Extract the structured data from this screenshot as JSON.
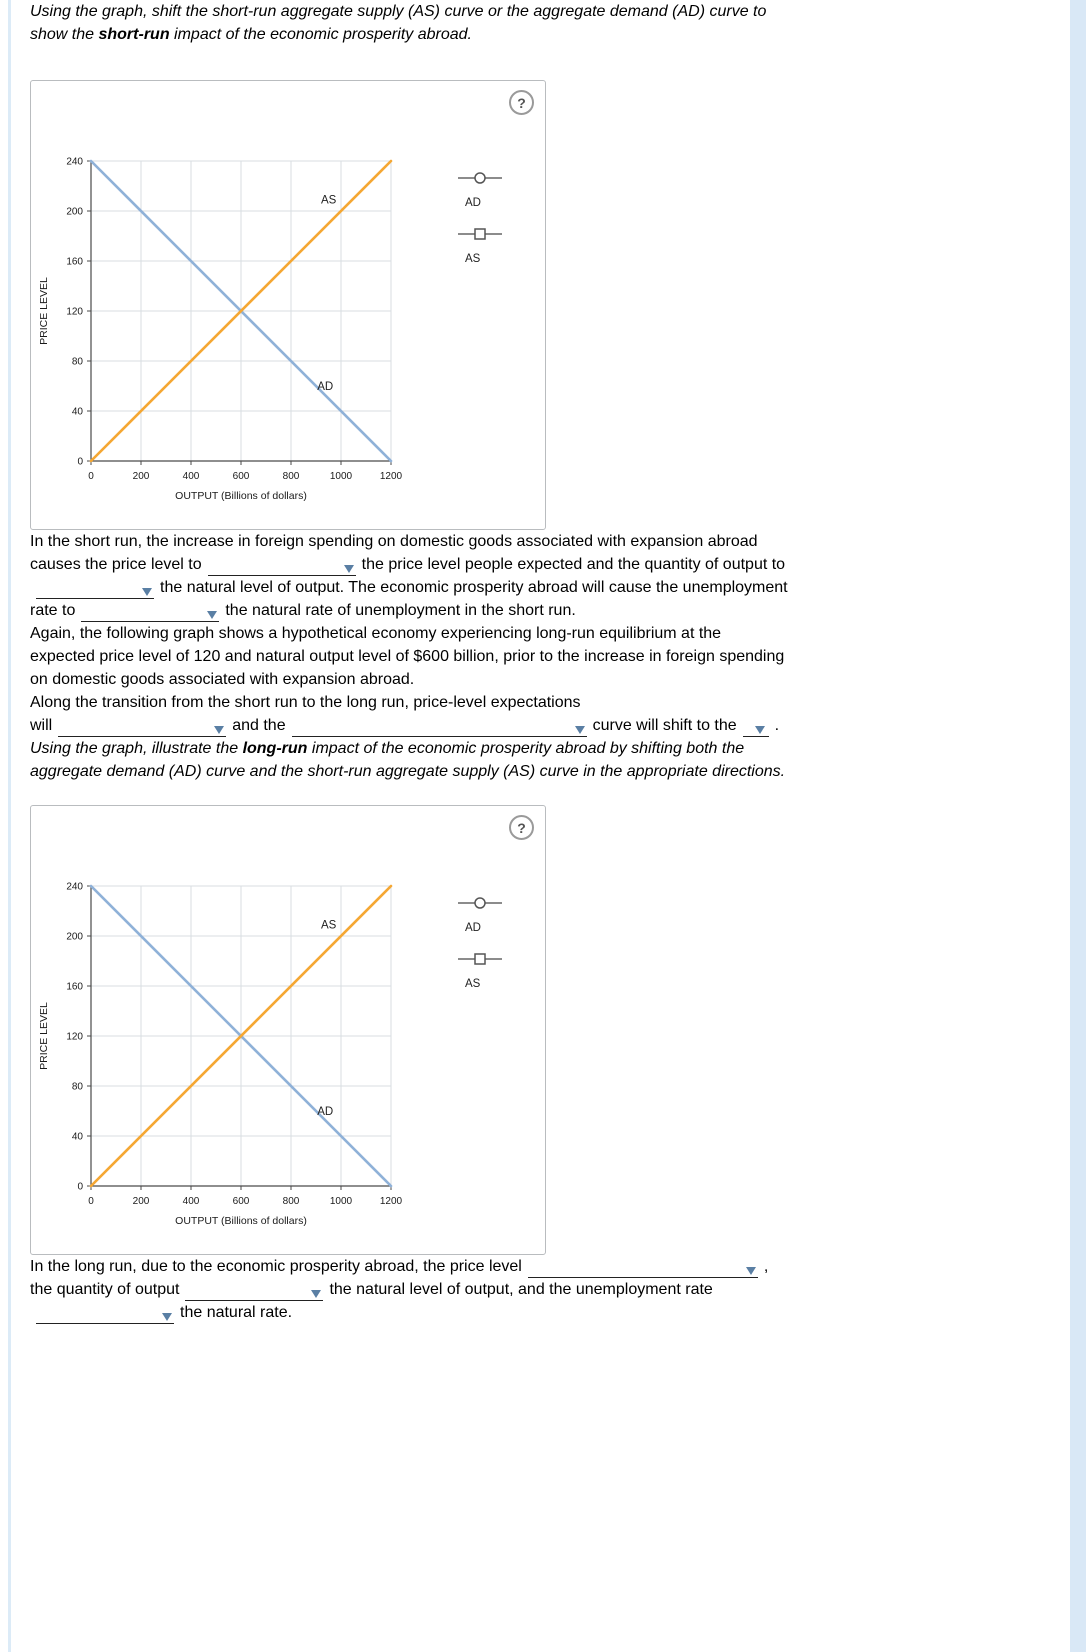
{
  "intro": {
    "pre": "Using the graph, shift the short-run aggregate supply (AS) curve or the aggregate demand (AD) curve to show the ",
    "bold": "short-run",
    "post": " impact of the economic prosperity abroad."
  },
  "panel": {
    "help_label": "?"
  },
  "chart_data": [
    {
      "id": "short-run-graph",
      "type": "line",
      "title": "",
      "xlabel": "OUTPUT (Billions of dollars)",
      "ylabel": "PRICE LEVEL",
      "xlim": [
        0,
        1200
      ],
      "ylim": [
        0,
        240
      ],
      "x_ticks": [
        0,
        200,
        400,
        600,
        800,
        1000,
        1200
      ],
      "y_ticks": [
        0,
        40,
        80,
        120,
        160,
        200,
        240
      ],
      "grid": true,
      "series": [
        {
          "name": "AD",
          "points": [
            [
              0,
              240
            ],
            [
              1200,
              0
            ]
          ],
          "color": "#8fb1d8",
          "label": "AD",
          "label_at": [
            905,
            57
          ]
        },
        {
          "name": "AS",
          "points": [
            [
              0,
              0
            ],
            [
              1200,
              240
            ]
          ],
          "color": "#f5a733",
          "label": "AS",
          "label_at": [
            920,
            206
          ]
        }
      ],
      "legend": [
        {
          "label": "AD",
          "marker": "circle"
        },
        {
          "label": "AS",
          "marker": "square"
        }
      ]
    },
    {
      "id": "long-run-graph",
      "type": "line",
      "title": "",
      "xlabel": "OUTPUT (Billions of dollars)",
      "ylabel": "PRICE LEVEL",
      "xlim": [
        0,
        1200
      ],
      "ylim": [
        0,
        240
      ],
      "x_ticks": [
        0,
        200,
        400,
        600,
        800,
        1000,
        1200
      ],
      "y_ticks": [
        0,
        40,
        80,
        120,
        160,
        200,
        240
      ],
      "grid": true,
      "series": [
        {
          "name": "AD",
          "points": [
            [
              0,
              240
            ],
            [
              1200,
              0
            ]
          ],
          "color": "#8fb1d8",
          "label": "AD",
          "label_at": [
            905,
            57
          ]
        },
        {
          "name": "AS",
          "points": [
            [
              0,
              0
            ],
            [
              1200,
              240
            ]
          ],
          "color": "#f5a733",
          "label": "AS",
          "label_at": [
            920,
            206
          ]
        }
      ],
      "legend": [
        {
          "label": "AD",
          "marker": "circle"
        },
        {
          "label": "AS",
          "marker": "square"
        }
      ]
    }
  ],
  "short_run": {
    "s1": "In the short run, the increase in foreign spending on domestic goods associated with expansion abroad causes the price level to",
    "s2": "the price level people expected and the quantity of output to",
    "s3": "the natural level of output. The economic prosperity abroad will cause the unemployment rate to",
    "s4": "the natural rate of unemployment in the short run."
  },
  "again_text": "Again, the following graph shows a hypothetical economy experiencing long-run equilibrium at the expected price level of 120 and natural output level of $600 billion, prior to the increase in foreign spending on domestic goods associated with expansion abroad.",
  "transition": {
    "s1": "Along the transition from the short run to the long run, price-level expectations",
    "s2": "will",
    "s3": "and the",
    "s4": "curve will shift to the",
    "s5": "."
  },
  "longrun_intro": {
    "pre": "Using the graph, illustrate the ",
    "bold": "long-run",
    "post": " impact of the economic prosperity abroad by shifting both the aggregate demand (AD) curve and the short-run aggregate supply (AS) curve in the appropriate directions."
  },
  "long_run": {
    "s1": "In the long run, due to the economic prosperity abroad, the price level",
    "s2": ", the quantity of output",
    "s3": "the natural level of output, and the unemployment rate",
    "s4": "the natural rate."
  }
}
